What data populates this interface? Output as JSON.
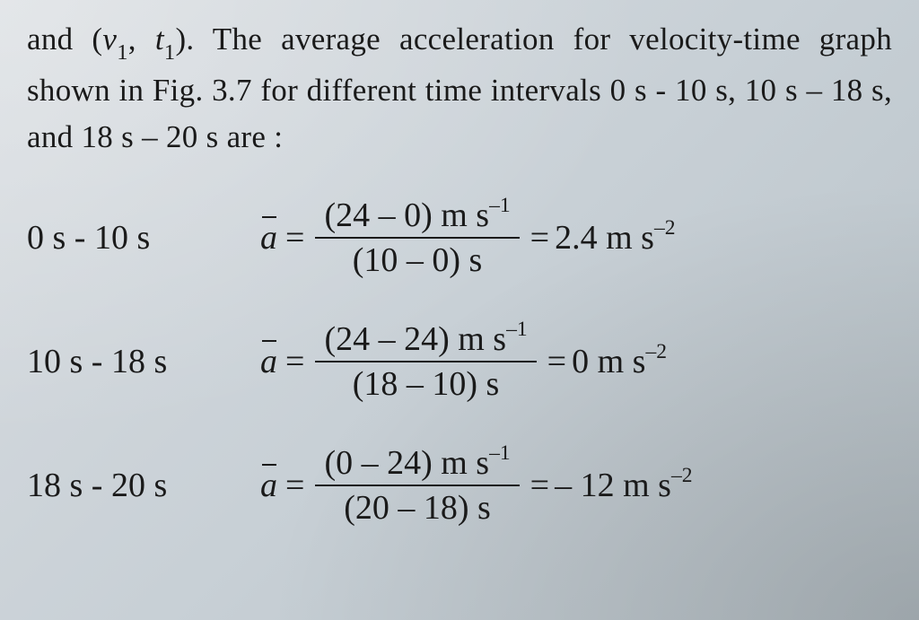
{
  "paragraph": {
    "prefix": "and (",
    "var1": "v",
    "sub1": "1",
    "comma": ", ",
    "var2": "t",
    "sub2": "1",
    "suffix": "). The average acceleration for velocity-time graph shown in Fig. 3.7 for different time intervals 0 s - 10 s, 10 s – 18 s, and 18 s – 20 s are :"
  },
  "equations": [
    {
      "interval": "0 s - 10 s",
      "num_expr": "(24 – 0)",
      "num_unit": "m s",
      "num_sup": "–1",
      "den_expr": "(10 – 0)",
      "den_unit": "s",
      "result_val": "2.4 m s",
      "result_sup": "–2"
    },
    {
      "interval": "10 s - 18 s",
      "num_expr": "(24 – 24)",
      "num_unit": "m s",
      "num_sup": "–1",
      "den_expr": "(18 – 10)",
      "den_unit": "s",
      "result_val": "0 m s",
      "result_sup": "–2"
    },
    {
      "interval": "18 s - 20 s",
      "num_expr": "(0 – 24)",
      "num_unit": "m s",
      "num_sup": "–1",
      "den_expr": "(20 – 18)",
      "den_unit": "s",
      "result_val": "– 12 m s",
      "result_sup": "–2"
    }
  ],
  "labels": {
    "a_var": "a",
    "equals": "=",
    "equals2": "="
  },
  "colors": {
    "text": "#1a1a1a",
    "bg_light": "#d8dce0",
    "bg_dark": "#b8c2c8"
  }
}
